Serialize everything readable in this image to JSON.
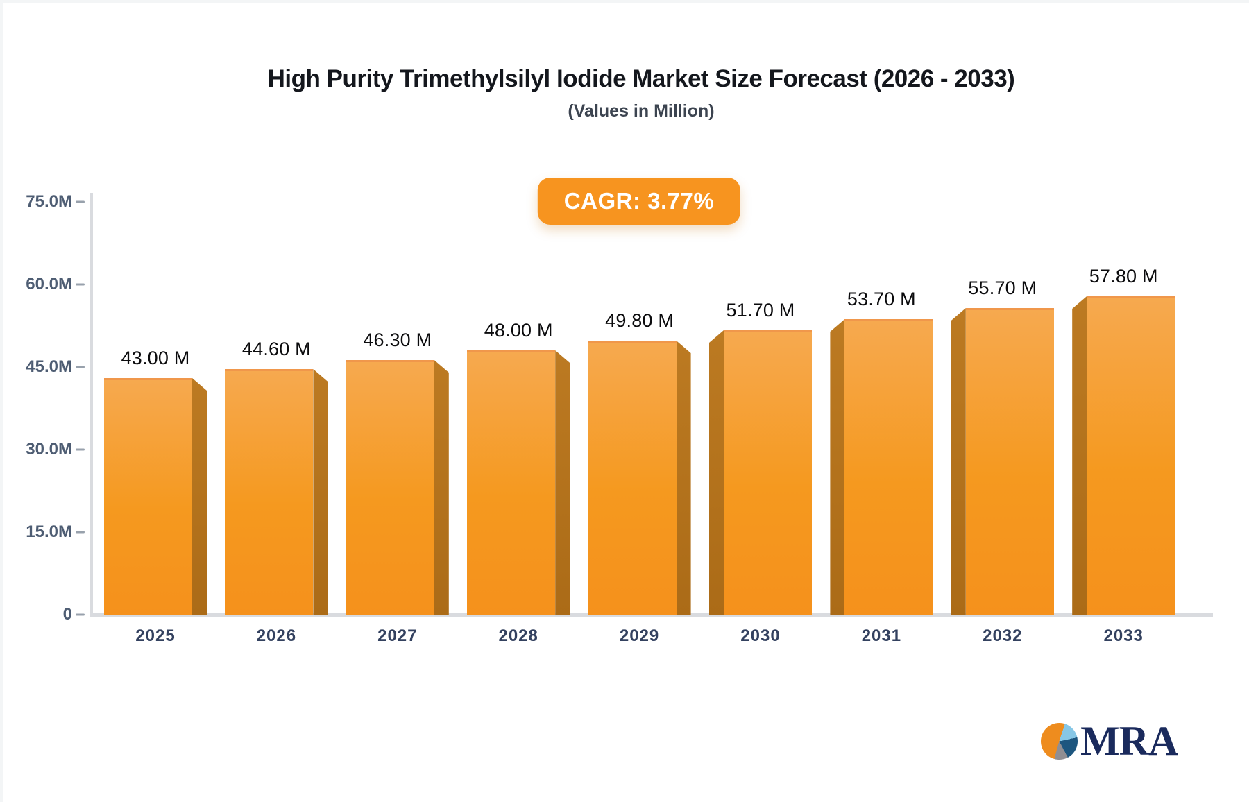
{
  "header": {
    "title": "High Purity Trimethylsilyl Iodide Market Size Forecast (2026 - 2033)",
    "subtitle": "(Values in Million)",
    "cagr_label": "CAGR: 3.77%",
    "badge_color": "#f7941f"
  },
  "chart_data": {
    "type": "bar",
    "categories": [
      "2025",
      "2026",
      "2027",
      "2028",
      "2029",
      "2030",
      "2031",
      "2032",
      "2033"
    ],
    "values": [
      43.0,
      44.6,
      46.3,
      48.0,
      49.8,
      51.7,
      53.7,
      55.7,
      57.8
    ],
    "bar_labels": [
      "43.00 M",
      "44.60 M",
      "46.30 M",
      "48.00 M",
      "49.80 M",
      "51.70 M",
      "53.70 M",
      "55.70 M",
      "57.80 M"
    ],
    "title": "High Purity Trimethylsilyl Iodide Market Size Forecast (2026 - 2033)",
    "xlabel": "",
    "ylabel": "",
    "ylim": [
      0,
      75
    ],
    "y_tick_labels": [
      "75.0M",
      "60.0M",
      "45.0M",
      "30.0M",
      "15.0M",
      "0"
    ],
    "y_tick_values": [
      75,
      60,
      45,
      30,
      15,
      0
    ],
    "grid": false,
    "legend": false,
    "bar_face_color": "#f5991f",
    "bar_side_color": "#b0701c",
    "shade_side": [
      "right",
      "right",
      "right",
      "right",
      "right",
      "left",
      "left",
      "left",
      "left"
    ]
  },
  "logo": {
    "text": "MRA",
    "icon": "pie-chart-icon",
    "text_color": "#1a2a5c",
    "pie_colors": [
      "#ee8c1e",
      "#87c7e6",
      "#1d567f",
      "#908e92"
    ]
  }
}
